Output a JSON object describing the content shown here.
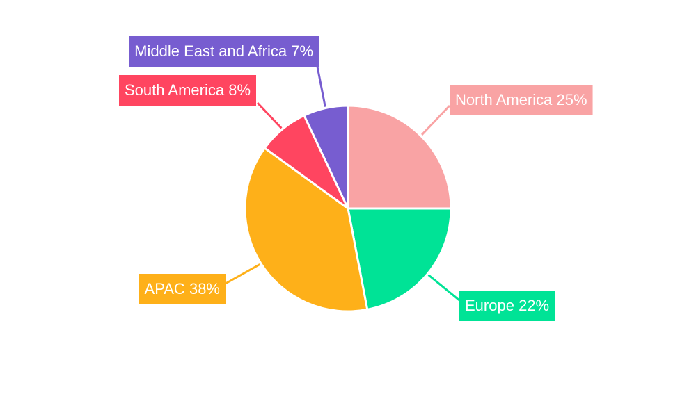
{
  "chart_data": {
    "type": "pie",
    "categories": [
      "North America",
      "Europe",
      "APAC",
      "South America",
      "Middle East and Africa"
    ],
    "values": [
      25,
      22,
      38,
      8,
      7
    ],
    "value_labels": [
      "25%",
      "22%",
      "38%",
      "8%",
      "7%"
    ],
    "colors": [
      "#f9a3a4",
      "#00e396",
      "#feb019",
      "#ff4560",
      "#775dd0"
    ]
  }
}
